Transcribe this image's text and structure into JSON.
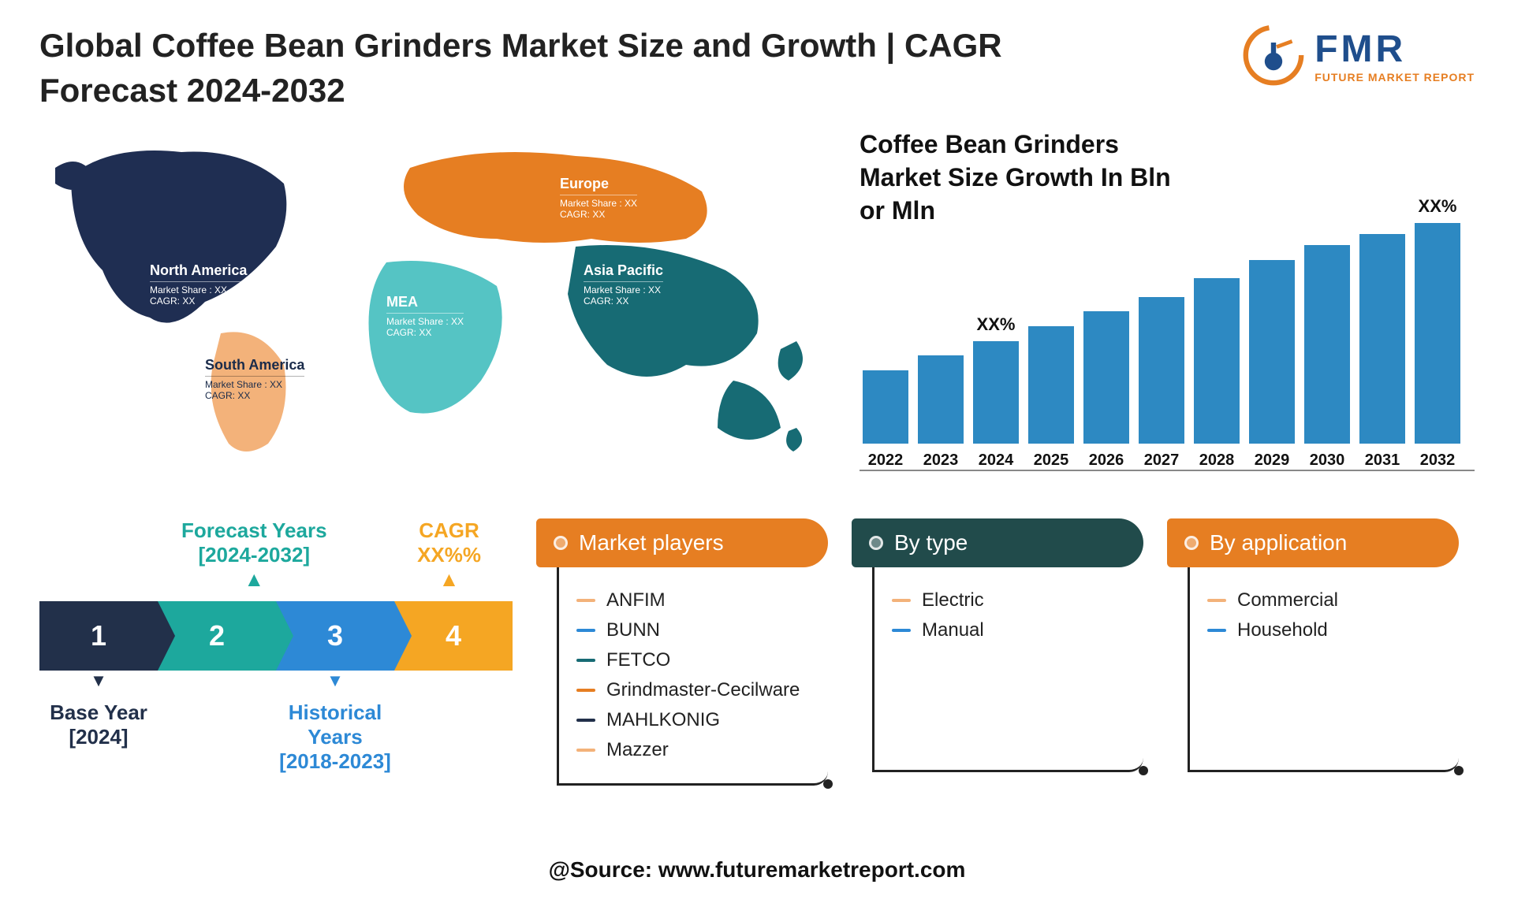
{
  "title": "Global Coffee Bean Grinders Market Size and Growth | CAGR Forecast 2024-2032",
  "logo": {
    "abbr": "FMR",
    "sub": "FUTURE MARKET REPORT"
  },
  "map": {
    "regions": {
      "north_america": {
        "name": "North America",
        "share": "Market Share : XX",
        "cagr": "CAGR: XX",
        "color": "#1f2e52"
      },
      "south_america": {
        "name": "South America",
        "share": "Market Share : XX",
        "cagr": "CAGR: XX",
        "color": "#f3b27a"
      },
      "europe": {
        "name": "Europe",
        "share": "Market Share : XX",
        "cagr": "CAGR: XX",
        "color": "#e67e22"
      },
      "mea": {
        "name": "MEA",
        "share": "Market Share : XX",
        "cagr": "CAGR: XX",
        "color": "#55c4c4"
      },
      "asia_pacific": {
        "name": "Asia Pacific",
        "share": "Market Share : XX",
        "cagr": "CAGR: XX",
        "color": "#176b74"
      }
    }
  },
  "chart": {
    "type": "bar",
    "title": "Coffee Bean Grinders Market Size Growth In Bln or Mln",
    "categories": [
      "2022",
      "2023",
      "2024",
      "2025",
      "2026",
      "2027",
      "2028",
      "2029",
      "2030",
      "2031",
      "2032"
    ],
    "values": [
      100,
      120,
      140,
      160,
      180,
      200,
      225,
      250,
      270,
      285,
      300
    ],
    "max": 300,
    "bar_color": "#2d89c2",
    "annotations": {
      "2024": "XX%",
      "2032": "XX%"
    },
    "axis_color": "#888888"
  },
  "timeline": {
    "forecast_label": "Forecast Years",
    "forecast_range": "[2024-2032]",
    "cagr_label": "CAGR",
    "cagr_value": "XX%%",
    "base_label": "Base Year",
    "base_range": "[2024]",
    "hist_label": "Historical Years",
    "hist_range": "[2018-2023]",
    "segments": [
      "1",
      "2",
      "3",
      "4"
    ],
    "colors": [
      "#22304a",
      "#1da89d",
      "#2d89d6",
      "#f5a623"
    ]
  },
  "panels": {
    "market_players": {
      "title": "Market players",
      "head_color": "#e67e22",
      "items": [
        {
          "label": "ANFIM",
          "color": "#f3b27a"
        },
        {
          "label": "BUNN",
          "color": "#2d89d6"
        },
        {
          "label": "FETCO",
          "color": "#176b74"
        },
        {
          "label": "Grindmaster-Cecilware",
          "color": "#e67e22"
        },
        {
          "label": "MAHLKONIG",
          "color": "#22304a"
        },
        {
          "label": "Mazzer",
          "color": "#f3b27a"
        }
      ]
    },
    "by_type": {
      "title": "By type",
      "head_color": "#214b4b",
      "items": [
        {
          "label": "Electric",
          "color": "#f3b27a"
        },
        {
          "label": "Manual",
          "color": "#2d89d6"
        }
      ]
    },
    "by_application": {
      "title": "By application",
      "head_color": "#e67e22",
      "items": [
        {
          "label": "Commercial",
          "color": "#f3b27a"
        },
        {
          "label": "Household",
          "color": "#2d89d6"
        }
      ]
    }
  },
  "source": "@Source: www.futuremarketreport.com"
}
